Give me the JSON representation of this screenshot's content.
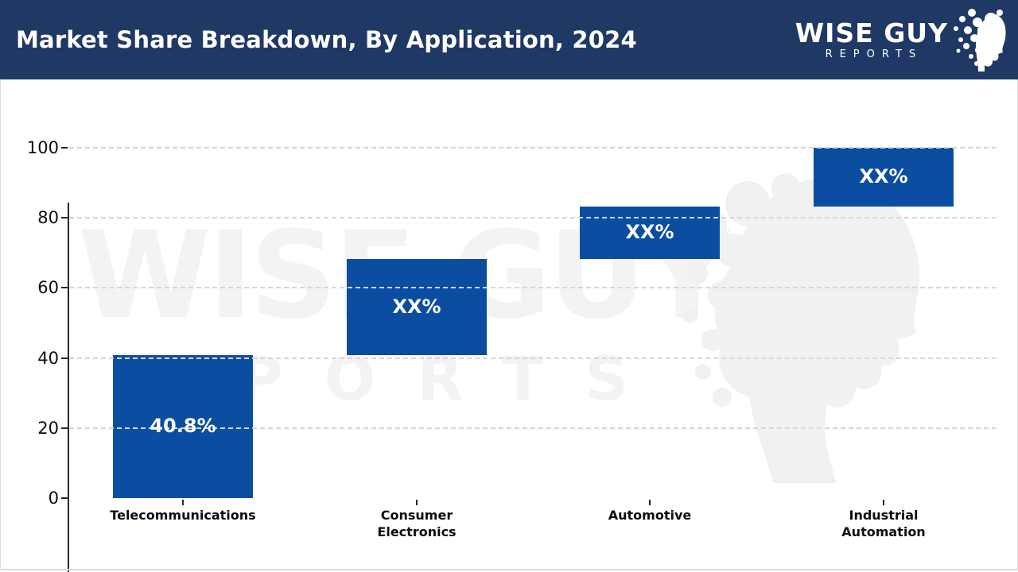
{
  "header": {
    "title": "Market Share Breakdown, By Application, 2024",
    "logo": {
      "line1": "WISE GUY",
      "line2": "REPORTS"
    }
  },
  "watermark": {
    "line1": "WISE GUY",
    "line2": "PORTS"
  },
  "chart_data": {
    "type": "bar",
    "subtype": "waterfall",
    "title": "Market Share Breakdown, By Application, 2024",
    "categories": [
      "Telecommunications",
      "Consumer\nElectronics",
      "Automotive",
      "Industrial\nAutomation"
    ],
    "segments": [
      {
        "category": "Telecommunications",
        "start": 0,
        "end": 40.8,
        "label": "40.8%"
      },
      {
        "category": "Consumer Electronics",
        "start": 40.8,
        "end": 68.2,
        "label": "XX%"
      },
      {
        "category": "Automotive",
        "start": 68.2,
        "end": 83.2,
        "label": "XX%"
      },
      {
        "category": "Industrial Automation",
        "start": 83.2,
        "end": 100,
        "label": "XX%"
      }
    ],
    "yticks": [
      0,
      20,
      40,
      60,
      80,
      100
    ],
    "ylim": [
      0,
      107
    ],
    "xlabel": "",
    "ylabel": "",
    "grid": true,
    "legend": false,
    "bar_color": "#0b4da1",
    "colors": {
      "header_bg": "#203864",
      "axis": "#262626",
      "gridline": "#d6d6d6",
      "bar_label_text": "#ffffff",
      "watermark": "#f3f3f4"
    }
  }
}
